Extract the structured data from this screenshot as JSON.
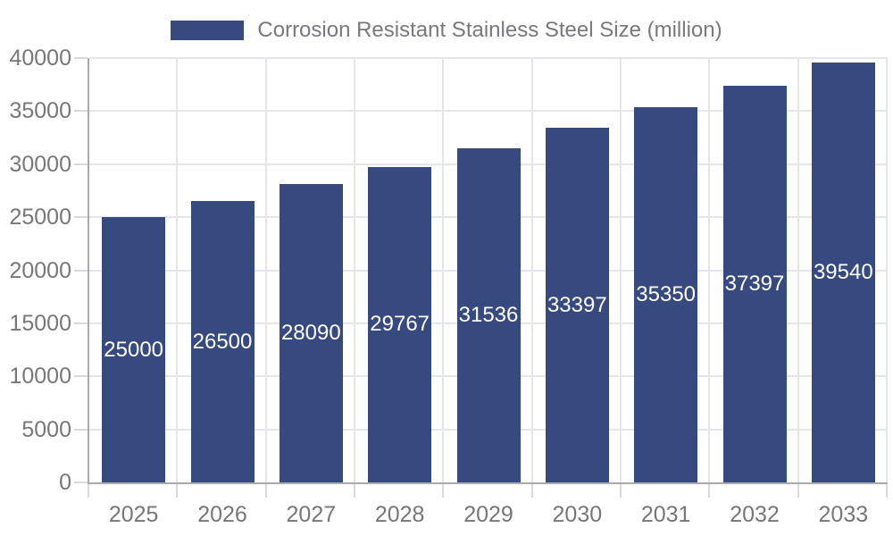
{
  "legend": {
    "label": "Corrosion Resistant Stainless Steel Size (million)"
  },
  "colors": {
    "bar": "#374a80",
    "axis_line": "#aaaaad",
    "grid_line": "#e5e5ea",
    "tick_mark": "#d9d9dd",
    "axis_label": "#777777",
    "legend_text": "#77797c",
    "value_label": "#ffffff",
    "background": "#ffffff"
  },
  "chart_data": {
    "type": "bar",
    "title": "",
    "series": [
      {
        "name": "Corrosion Resistant Stainless Steel Size (million)",
        "values": [
          25000,
          26500,
          28090,
          29767,
          31536,
          33397,
          35350,
          37397,
          39540
        ]
      }
    ],
    "categories": [
      "2025",
      "2026",
      "2027",
      "2028",
      "2029",
      "2030",
      "2031",
      "2032",
      "2033"
    ],
    "value_labels": [
      "25000",
      "26500",
      "28090",
      "29767",
      "31536",
      "33397",
      "35350",
      "37397",
      "39540"
    ],
    "xlabel": "",
    "ylabel": "",
    "ylim": [
      0,
      40000
    ],
    "y_ticks": [
      0,
      5000,
      10000,
      15000,
      20000,
      25000,
      30000,
      35000,
      40000
    ],
    "y_tick_labels": [
      "0",
      "5000",
      "10000",
      "15000",
      "20000",
      "25000",
      "30000",
      "35000",
      "40000"
    ],
    "grid": true,
    "legend_position": "top",
    "value_label_position": "inside-middle"
  }
}
